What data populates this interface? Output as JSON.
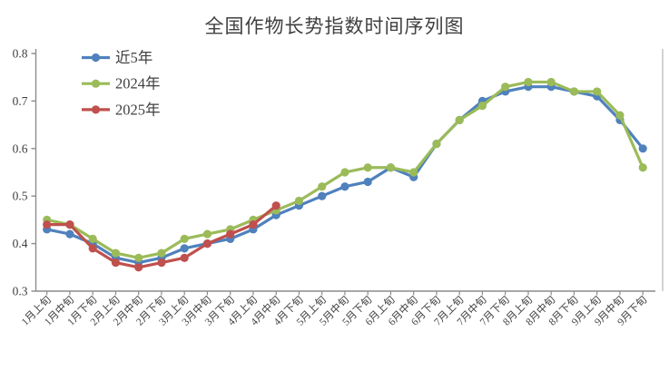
{
  "title": "全国作物长势指数时间序列图",
  "chart_data": {
    "type": "line",
    "title": "全国作物长势指数时间序列图",
    "xlabel": "",
    "ylabel": "",
    "ylim": [
      0.3,
      0.8
    ],
    "ytick_labels": [
      "0.3",
      "0.4",
      "0.5",
      "0.6",
      "0.7",
      "0.8"
    ],
    "grid": false,
    "legend_position": "top-left-inside",
    "axis_color": "#8c8c8c",
    "right_border_color": "#b3b3b3",
    "text_color": "#404040",
    "categories": [
      "1月上旬",
      "1月中旬",
      "1月下旬",
      "2月上旬",
      "2月中旬",
      "2月下旬",
      "3月上旬",
      "3月中旬",
      "3月下旬",
      "4月上旬",
      "4月中旬",
      "4月下旬",
      "5月上旬",
      "5月中旬",
      "5月下旬",
      "6月上旬",
      "6月中旬",
      "6月下旬",
      "7月上旬",
      "7月中旬",
      "7月下旬",
      "8月上旬",
      "8月中旬",
      "8月下旬",
      "9月上旬",
      "9月中旬",
      "9月下旬"
    ],
    "series": [
      {
        "name": "近5年",
        "color": "#4F81BD",
        "values": [
          0.43,
          0.42,
          0.4,
          0.37,
          0.36,
          0.37,
          0.39,
          0.4,
          0.41,
          0.43,
          0.46,
          0.48,
          0.5,
          0.52,
          0.53,
          0.56,
          0.54,
          0.61,
          0.66,
          0.7,
          0.72,
          0.73,
          0.73,
          0.72,
          0.71,
          0.66,
          0.6
        ]
      },
      {
        "name": "2024年",
        "color": "#9BBB59",
        "values": [
          0.45,
          0.44,
          0.41,
          0.38,
          0.37,
          0.38,
          0.41,
          0.42,
          0.43,
          0.45,
          0.47,
          0.49,
          0.52,
          0.55,
          0.56,
          0.56,
          0.55,
          0.61,
          0.66,
          0.69,
          0.73,
          0.74,
          0.74,
          0.72,
          0.72,
          0.67,
          0.56
        ]
      },
      {
        "name": "2025年",
        "color": "#C0504D",
        "values": [
          0.44,
          0.44,
          0.39,
          0.36,
          0.35,
          0.36,
          0.37,
          0.4,
          0.42,
          0.44,
          0.48
        ]
      }
    ]
  }
}
